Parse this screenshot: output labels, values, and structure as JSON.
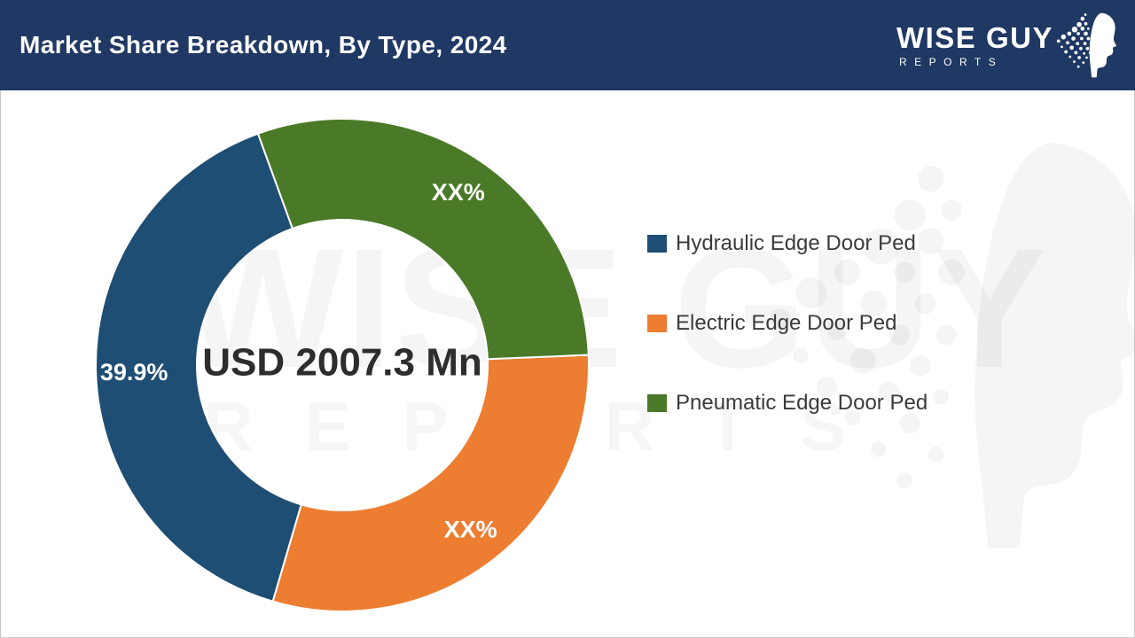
{
  "header": {
    "title": "Market Share Breakdown, By Type, 2024",
    "logo": {
      "line1": "WISE GUY",
      "line2": "REPORTS"
    }
  },
  "watermark": {
    "line1": "WISE GUY",
    "line2": "REPORTS"
  },
  "chart_data": {
    "type": "pie",
    "subtype": "donut",
    "title": "Market Share Breakdown, By Type, 2024",
    "center_label": "USD 2007.3 Mn",
    "start_angle_deg": 110,
    "direction": "counterclockwise",
    "hole_radius_ratio": 0.59,
    "legend_position": "right",
    "slices": [
      {
        "label": "Hydraulic Edge Door Ped",
        "value_pct": 39.9,
        "display_label": "39.9%",
        "color": "#1F4E74"
      },
      {
        "label": "Electric Edge Door Ped",
        "value_pct": 30.2,
        "display_label": "XX%",
        "color": "#ED7D31"
      },
      {
        "label": "Pneumatic Edge Door Ped",
        "value_pct": 29.9,
        "display_label": "XX%",
        "color": "#4A7A28"
      }
    ],
    "colors": {
      "header_navy": "#1F3864",
      "page_border": "#C9C9C9",
      "legend_text": "#3B3B3B",
      "center_text": "#2D2D2D"
    }
  }
}
